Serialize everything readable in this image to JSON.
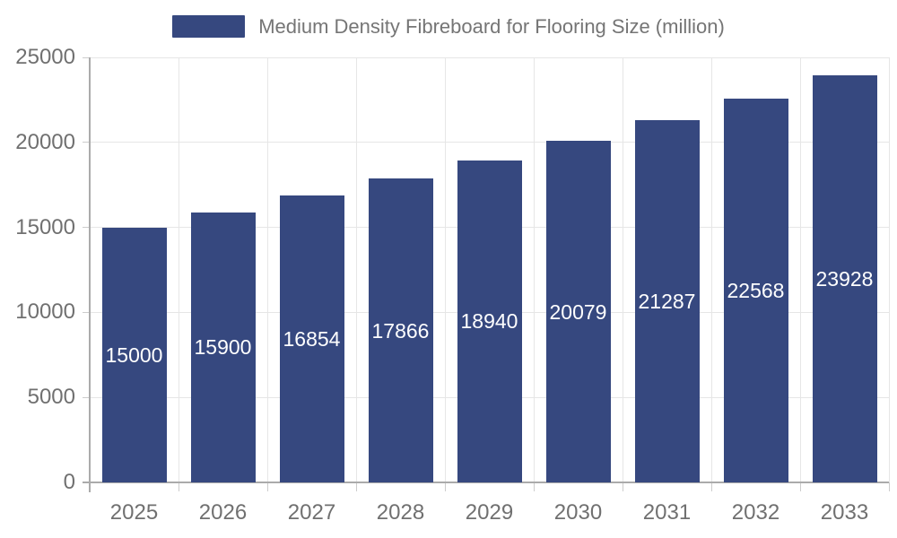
{
  "chart_data": {
    "type": "bar",
    "title": "Medium Density Fibreboard for Flooring Size (million)",
    "categories": [
      "2025",
      "2026",
      "2027",
      "2028",
      "2029",
      "2030",
      "2031",
      "2032",
      "2033"
    ],
    "values": [
      15000,
      15900,
      16854,
      17866,
      18940,
      20079,
      21287,
      22568,
      23928
    ],
    "series": [
      {
        "name": "Medium Density Fibreboard for Flooring Size (million)",
        "values": [
          15000,
          15900,
          16854,
          17866,
          18940,
          20079,
          21287,
          22568,
          23928
        ]
      }
    ],
    "xlabel": "",
    "ylabel": "",
    "ylim": [
      0,
      25000
    ],
    "yticks": [
      0,
      5000,
      10000,
      15000,
      20000,
      25000
    ],
    "ytick_labels": [
      "0",
      "5000",
      "10000",
      "15000",
      "20000",
      "25000"
    ],
    "grid": true,
    "legend_position": "top-center",
    "bar_value_labels_inside": true,
    "colors": {
      "bar": "#36487f",
      "title_text": "#757575",
      "axis_label_text": "#707070",
      "value_label_text": "#ffffff",
      "gridline": "#e6e6e6",
      "axis_line": "#ababab",
      "tick_mark": "#cccccc",
      "background": "#ffffff"
    }
  }
}
